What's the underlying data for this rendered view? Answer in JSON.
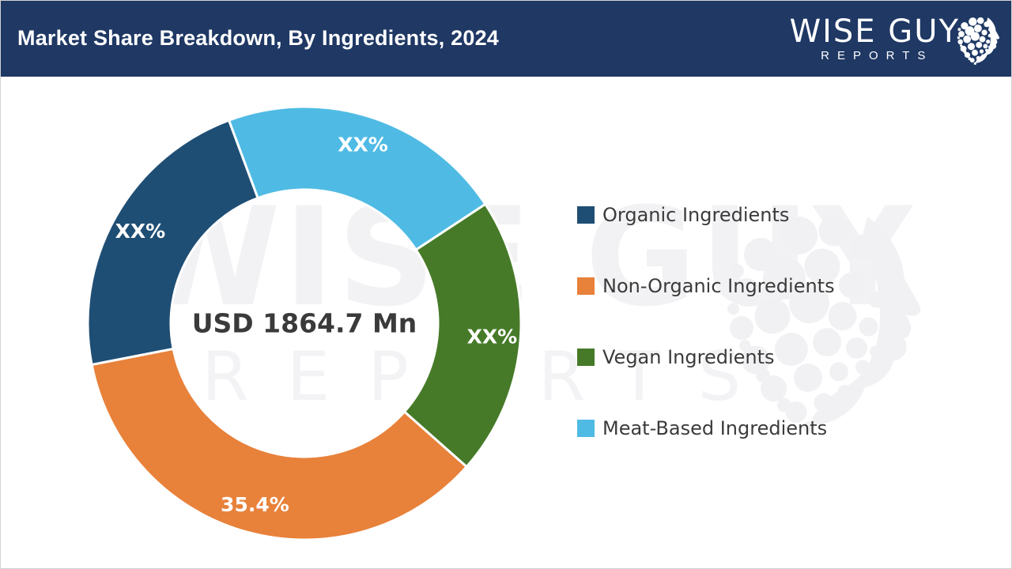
{
  "header": {
    "title": "Market Share Breakdown, By Ingredients, 2024",
    "bg_color": "#1f3864",
    "logo": {
      "line1": "WISE GUY",
      "line2": "REPORTS"
    }
  },
  "watermark": {
    "line1": "WISE GUY",
    "line2": "REPORTS"
  },
  "chart_data": {
    "type": "pie",
    "subtype": "donut",
    "title": "Market Share Breakdown, By Ingredients, 2024",
    "center_label": "USD 1864.7 Mn",
    "start_angle_deg": -20.4,
    "outer_radius": 274,
    "inner_radius": 169,
    "label_radius": 238,
    "gap_color": "#ffffff",
    "segments": [
      {
        "name": "Meat-Based Ingredients",
        "label": "XX%",
        "share": 21.4,
        "color": "#4fbbe4"
      },
      {
        "name": "Vegan Ingredients",
        "label": "XX%",
        "share": 20.8,
        "color": "#467a28"
      },
      {
        "name": "Non-Organic Ingredients",
        "label": "35.4%",
        "share": 35.4,
        "color": "#e8813a"
      },
      {
        "name": "Organic Ingredients",
        "label": "XX%",
        "share": 22.4,
        "color": "#1f4e74"
      }
    ],
    "legend_position": "right",
    "legend": [
      {
        "label": "Organic Ingredients",
        "color": "#1f4e74"
      },
      {
        "label": "Non-Organic Ingredients",
        "color": "#e8813a"
      },
      {
        "label": "Vegan Ingredients",
        "color": "#467a28"
      },
      {
        "label": "Meat-Based Ingredients",
        "color": "#4fbbe4"
      }
    ]
  }
}
